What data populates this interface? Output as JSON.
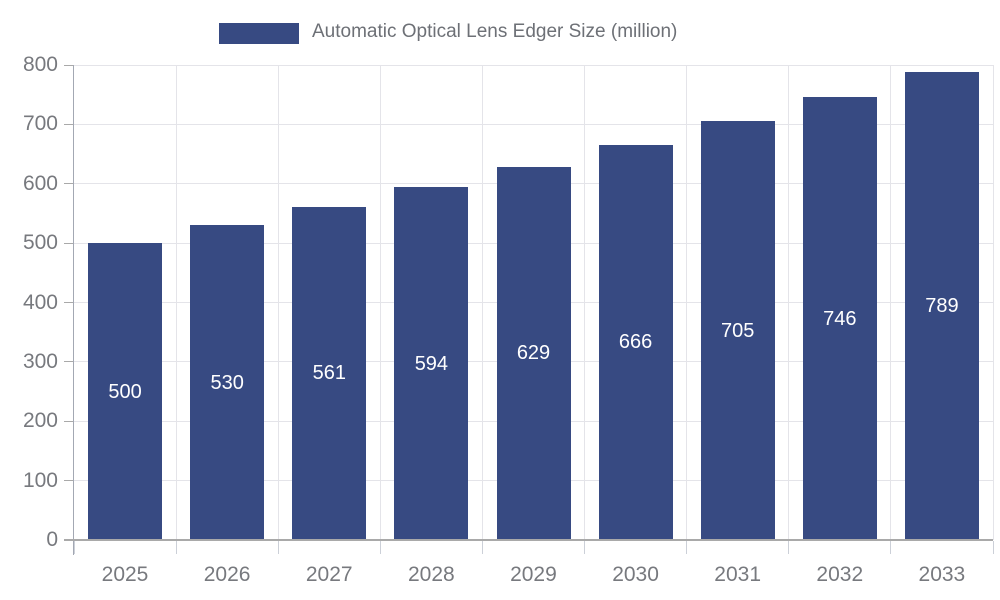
{
  "chart_data": {
    "type": "bar",
    "title": "Automatic Optical Lens Edger Size (million)",
    "legend": {
      "label": "Automatic Optical Lens Edger Size (million)",
      "position": "top"
    },
    "categories": [
      "2025",
      "2026",
      "2027",
      "2028",
      "2029",
      "2030",
      "2031",
      "2032",
      "2033"
    ],
    "values": [
      500,
      530,
      561,
      594,
      629,
      666,
      705,
      746,
      789
    ],
    "xlabel": "",
    "ylabel": "",
    "ylim": [
      0,
      800
    ],
    "y_ticks": [
      0,
      100,
      200,
      300,
      400,
      500,
      600,
      700,
      800
    ],
    "grid": true,
    "value_labels_inside_bars": true,
    "colors": {
      "bar": "#374a82",
      "value_label": "#ffffff",
      "axis_text": "#77797e",
      "legend_text": "#6d7076",
      "gridline": "#e4e4e9",
      "background": "#ffffff"
    }
  }
}
